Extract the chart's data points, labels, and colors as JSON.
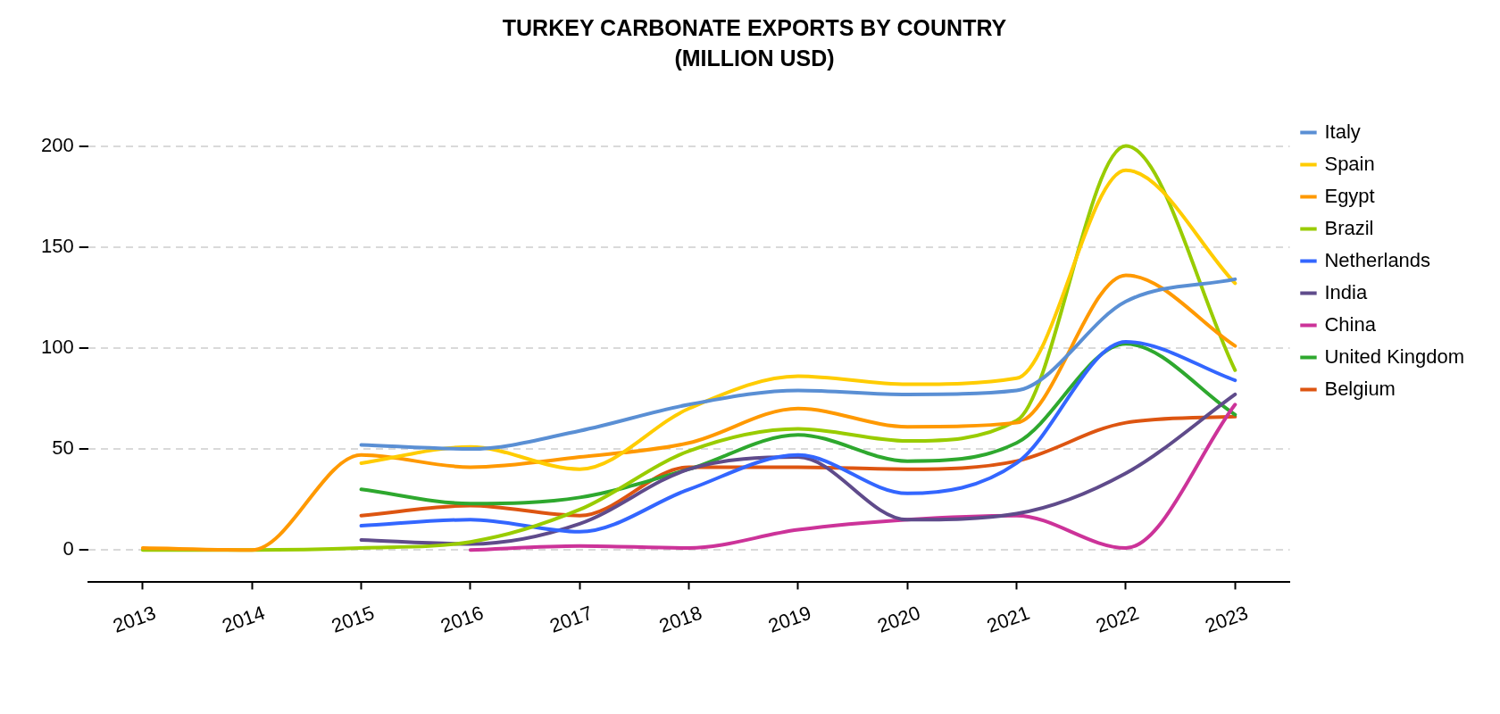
{
  "chart_data": {
    "type": "line",
    "title": "TURKEY CARBONATE EXPORTS BY COUNTRY\n(MILLION USD)",
    "categories": [
      "2013",
      "2014",
      "2015",
      "2016",
      "2017",
      "2018",
      "2019",
      "2020",
      "2021",
      "2022",
      "2023"
    ],
    "series": [
      {
        "name": "Italy",
        "color": "#5a8fd4",
        "values": [
          null,
          null,
          52,
          50,
          59,
          72,
          79,
          77,
          79,
          123,
          134
        ]
      },
      {
        "name": "Spain",
        "color": "#ffcc00",
        "values": [
          null,
          null,
          43,
          51,
          40,
          70,
          86,
          82,
          85,
          188,
          132
        ]
      },
      {
        "name": "Egypt",
        "color": "#ff9900",
        "values": [
          1,
          0,
          47,
          41,
          46,
          53,
          70,
          61,
          63,
          136,
          101
        ]
      },
      {
        "name": "Brazil",
        "color": "#99cc00",
        "values": [
          0,
          0,
          1,
          4,
          20,
          49,
          60,
          54,
          64,
          200,
          89
        ]
      },
      {
        "name": "Netherlands",
        "color": "#3366ff",
        "values": [
          null,
          null,
          12,
          15,
          9,
          30,
          47,
          28,
          43,
          103,
          84
        ]
      },
      {
        "name": "India",
        "color": "#5f4b8b",
        "values": [
          null,
          null,
          5,
          3,
          13,
          40,
          46,
          15,
          18,
          38,
          77
        ]
      },
      {
        "name": "China",
        "color": "#cc3399",
        "values": [
          null,
          null,
          null,
          0,
          2,
          1,
          10,
          15,
          17,
          1,
          72
        ]
      },
      {
        "name": "United Kingdom",
        "color": "#2ea82e",
        "values": [
          null,
          null,
          30,
          23,
          26,
          40,
          57,
          44,
          53,
          102,
          67
        ]
      },
      {
        "name": "Belgium",
        "color": "#dd5511",
        "values": [
          null,
          null,
          17,
          22,
          17,
          41,
          41,
          40,
          44,
          63,
          66
        ]
      }
    ],
    "ylim": [
      -16,
      200
    ],
    "yticks": [
      0,
      50,
      100,
      150,
      200
    ],
    "grid": "y",
    "legend": "top right",
    "marker": "none",
    "line_style": "solid"
  }
}
